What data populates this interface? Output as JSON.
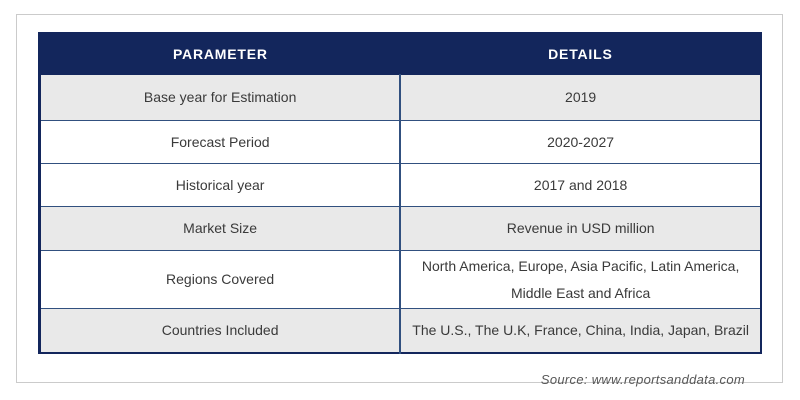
{
  "table": {
    "headers": {
      "parameter": "PARAMETER",
      "details": "DETAILS"
    },
    "rows": [
      {
        "parameter": "Base year for Estimation",
        "details": "2019"
      },
      {
        "parameter": "Forecast Period",
        "details": "2020-2027"
      },
      {
        "parameter": "Historical year",
        "details": "2017 and 2018"
      },
      {
        "parameter": "Market Size",
        "details": "Revenue in USD million"
      },
      {
        "parameter": "Regions Covered",
        "details": "North America, Europe, Asia Pacific, Latin America, Middle East and Africa"
      },
      {
        "parameter": "Countries Included",
        "details": "The U.S., The  U.K, France, China, India, Japan, Brazil"
      }
    ]
  },
  "footer": {
    "source": "Source: www.reportsanddata.com"
  },
  "colors": {
    "header_bg": "#13265c",
    "row_alt_bg": "#e9e9e9",
    "row_bg": "#ffffff",
    "inner_border": "#31507f",
    "frame_border": "#cbcbcb",
    "header_text": "#ffffff",
    "body_text": "#3a3a3a",
    "source_text": "#575757"
  }
}
